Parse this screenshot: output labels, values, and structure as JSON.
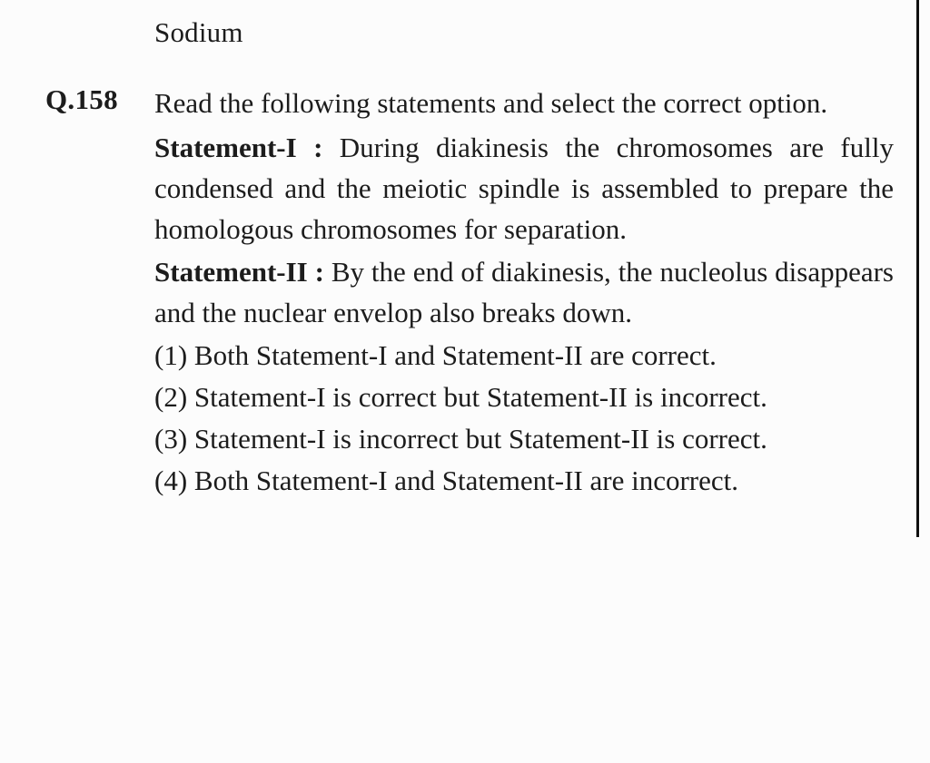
{
  "header": {
    "text": "Sodium"
  },
  "question": {
    "number": "Q.158",
    "intro": "Read the following statements and select the correct option.",
    "statements": [
      {
        "label": "Statement-I :",
        "text": " During diakinesis the chromosomes are fully condensed and the meiotic spindle is assembled to prepare the homologous chromosomes for separation."
      },
      {
        "label": "Statement-II :",
        "text": " By the end of diakinesis, the nucleolus disappears and the nuclear envelop also breaks down."
      }
    ],
    "options": [
      "(1) Both Statement-I and Statement-II are correct.",
      "(2) Statement-I is correct but Statement-II is incorrect.",
      "(3) Statement-I is incorrect but Statement-II is correct.",
      "(4) Both Statement-I and Statement-II are incorrect."
    ]
  }
}
